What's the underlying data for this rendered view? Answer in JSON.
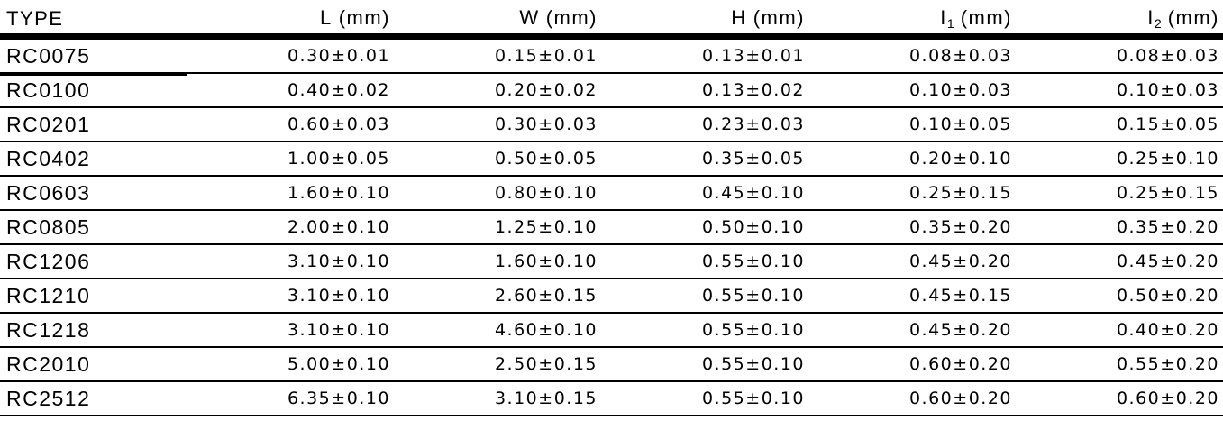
{
  "page": {
    "background": "#ffffff",
    "text_color": "#000000",
    "rule_color": "#000000"
  },
  "table": {
    "columns": [
      {
        "label": "TYPE",
        "sub": "",
        "unit": ""
      },
      {
        "label": "L",
        "sub": "",
        "unit": "(mm)"
      },
      {
        "label": "W",
        "sub": "",
        "unit": "(mm)"
      },
      {
        "label": "H",
        "sub": "",
        "unit": "(mm)"
      },
      {
        "label": "I",
        "sub": "1",
        "unit": "(mm)"
      },
      {
        "label": "I",
        "sub": "2",
        "unit": "(mm)"
      }
    ],
    "rows": [
      [
        "RC0075",
        "0.30±0.01",
        "0.15±0.01",
        "0.13±0.01",
        "0.08±0.03",
        "0.08±0.03"
      ],
      [
        "RC0100",
        "0.40±0.02",
        "0.20±0.02",
        "0.13±0.02",
        "0.10±0.03",
        "0.10±0.03"
      ],
      [
        "RC0201",
        "0.60±0.03",
        "0.30±0.03",
        "0.23±0.03",
        "0.10±0.05",
        "0.15±0.05"
      ],
      [
        "RC0402",
        "1.00±0.05",
        "0.50±0.05",
        "0.35±0.05",
        "0.20±0.10",
        "0.25±0.10"
      ],
      [
        "RC0603",
        "1.60±0.10",
        "0.80±0.10",
        "0.45±0.10",
        "0.25±0.15",
        "0.25±0.15"
      ],
      [
        "RC0805",
        "2.00±0.10",
        "1.25±0.10",
        "0.50±0.10",
        "0.35±0.20",
        "0.35±0.20"
      ],
      [
        "RC1206",
        "3.10±0.10",
        "1.60±0.10",
        "0.55±0.10",
        "0.45±0.20",
        "0.45±0.20"
      ],
      [
        "RC1210",
        "3.10±0.10",
        "2.60±0.15",
        "0.55±0.10",
        "0.45±0.15",
        "0.50±0.20"
      ],
      [
        "RC1218",
        "3.10±0.10",
        "4.60±0.10",
        "0.55±0.10",
        "0.45±0.20",
        "0.40±0.20"
      ],
      [
        "RC2010",
        "5.00±0.10",
        "2.50±0.15",
        "0.55±0.10",
        "0.60±0.20",
        "0.55±0.20"
      ],
      [
        "RC2512",
        "6.35±0.10",
        "3.10±0.15",
        "0.55±0.10",
        "0.60±0.20",
        "0.60±0.20"
      ]
    ]
  }
}
